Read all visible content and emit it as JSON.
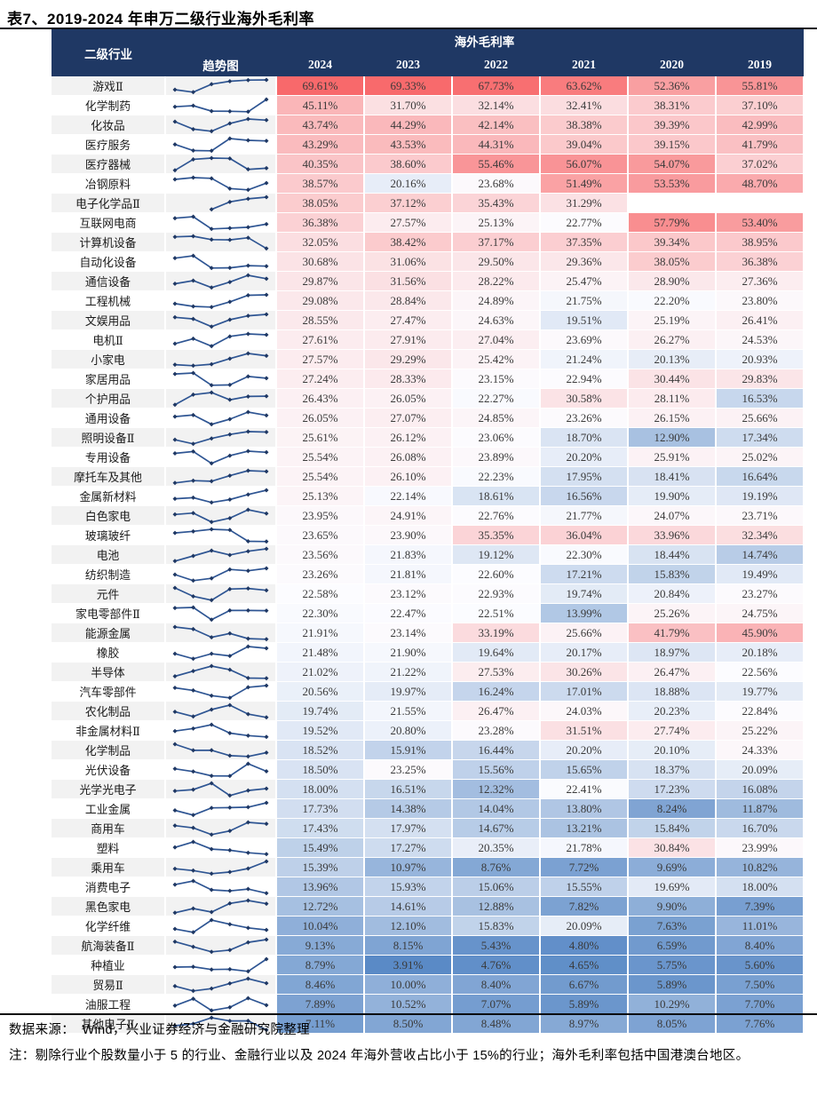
{
  "title": "表7、2019-2024 年申万二级行业海外毛利率",
  "header": {
    "industry": "二级行业",
    "trend": "趋势图",
    "group": "海外毛利率"
  },
  "chart_data": {
    "type": "table",
    "title": "海外毛利率",
    "years": [
      "2024",
      "2023",
      "2022",
      "2021",
      "2020",
      "2019"
    ],
    "unit": "%",
    "value_order": "2024→2019",
    "rows": [
      {
        "name": "游戏Ⅱ",
        "values": [
          69.61,
          69.33,
          67.73,
          63.62,
          52.36,
          55.81
        ]
      },
      {
        "name": "化学制药",
        "values": [
          45.11,
          31.7,
          32.14,
          32.41,
          38.31,
          37.1
        ]
      },
      {
        "name": "化妆品",
        "values": [
          43.74,
          44.29,
          42.14,
          38.38,
          39.39,
          42.99
        ]
      },
      {
        "name": "医疗服务",
        "values": [
          43.29,
          43.53,
          44.31,
          39.04,
          39.15,
          41.79
        ]
      },
      {
        "name": "医疗器械",
        "values": [
          40.35,
          38.6,
          55.46,
          56.07,
          54.07,
          37.02
        ]
      },
      {
        "name": "冶钢原料",
        "values": [
          38.57,
          20.16,
          23.68,
          51.49,
          53.53,
          48.7
        ]
      },
      {
        "name": "电子化学品Ⅱ",
        "values": [
          38.05,
          37.12,
          35.43,
          31.29,
          null,
          null
        ]
      },
      {
        "name": "互联网电商",
        "values": [
          36.38,
          27.57,
          25.13,
          22.77,
          57.79,
          53.4
        ]
      },
      {
        "name": "计算机设备",
        "values": [
          32.05,
          38.42,
          37.17,
          37.35,
          39.34,
          38.95
        ]
      },
      {
        "name": "自动化设备",
        "values": [
          30.68,
          31.06,
          29.5,
          29.36,
          38.05,
          36.38
        ]
      },
      {
        "name": "通信设备",
        "values": [
          29.87,
          31.56,
          28.22,
          25.47,
          28.9,
          27.36
        ]
      },
      {
        "name": "工程机械",
        "values": [
          29.08,
          28.84,
          24.89,
          21.75,
          22.2,
          23.8
        ]
      },
      {
        "name": "文娱用品",
        "values": [
          28.55,
          27.47,
          24.63,
          19.51,
          25.19,
          26.41
        ]
      },
      {
        "name": "电机Ⅱ",
        "values": [
          27.61,
          27.91,
          27.04,
          23.69,
          26.27,
          24.53
        ]
      },
      {
        "name": "小家电",
        "values": [
          27.57,
          29.29,
          25.42,
          21.24,
          20.13,
          20.93
        ]
      },
      {
        "name": "家居用品",
        "values": [
          27.24,
          28.33,
          23.15,
          22.94,
          30.44,
          29.83
        ]
      },
      {
        "name": "个护用品",
        "values": [
          26.43,
          26.05,
          22.27,
          30.58,
          28.11,
          16.53
        ]
      },
      {
        "name": "通用设备",
        "values": [
          26.05,
          27.07,
          24.85,
          23.26,
          26.15,
          25.66
        ]
      },
      {
        "name": "照明设备Ⅱ",
        "values": [
          25.61,
          26.12,
          23.06,
          18.7,
          12.9,
          17.34
        ]
      },
      {
        "name": "专用设备",
        "values": [
          25.54,
          26.08,
          23.89,
          20.2,
          25.91,
          25.02
        ]
      },
      {
        "name": "摩托车及其他",
        "values": [
          25.54,
          26.1,
          22.23,
          17.95,
          18.41,
          16.64
        ]
      },
      {
        "name": "金属新材料",
        "values": [
          25.13,
          22.14,
          18.61,
          16.56,
          19.9,
          19.19
        ]
      },
      {
        "name": "白色家电",
        "values": [
          23.95,
          24.91,
          22.76,
          21.77,
          24.07,
          23.71
        ]
      },
      {
        "name": "玻璃玻纤",
        "values": [
          23.65,
          23.9,
          35.35,
          36.04,
          33.96,
          32.34
        ]
      },
      {
        "name": "电池",
        "values": [
          23.56,
          21.83,
          19.12,
          22.3,
          18.44,
          14.74
        ]
      },
      {
        "name": "纺织制造",
        "values": [
          23.26,
          21.81,
          22.6,
          17.21,
          15.83,
          19.49
        ]
      },
      {
        "name": "元件",
        "values": [
          22.58,
          23.12,
          22.93,
          19.74,
          20.84,
          23.27
        ]
      },
      {
        "name": "家电零部件Ⅱ",
        "values": [
          22.3,
          22.47,
          22.51,
          13.99,
          25.26,
          24.75
        ]
      },
      {
        "name": "能源金属",
        "values": [
          21.91,
          23.14,
          33.19,
          25.66,
          41.79,
          45.9
        ]
      },
      {
        "name": "橡胶",
        "values": [
          21.48,
          21.9,
          19.64,
          20.17,
          18.97,
          20.18
        ]
      },
      {
        "name": "半导体",
        "values": [
          21.02,
          21.22,
          27.53,
          30.26,
          26.47,
          22.56
        ]
      },
      {
        "name": "汽车零部件",
        "values": [
          20.56,
          19.97,
          16.24,
          17.01,
          18.88,
          19.77
        ]
      },
      {
        "name": "农化制品",
        "values": [
          19.74,
          21.55,
          26.47,
          24.03,
          20.23,
          22.84
        ]
      },
      {
        "name": "非金属材料Ⅱ",
        "values": [
          19.52,
          20.8,
          23.28,
          31.51,
          27.74,
          25.22
        ]
      },
      {
        "name": "化学制品",
        "values": [
          18.52,
          15.91,
          16.44,
          20.2,
          20.1,
          24.33
        ]
      },
      {
        "name": "光伏设备",
        "values": [
          18.5,
          23.25,
          15.56,
          15.65,
          18.37,
          20.09
        ]
      },
      {
        "name": "光学光电子",
        "values": [
          18.0,
          16.51,
          12.32,
          22.41,
          17.23,
          16.08
        ]
      },
      {
        "name": "工业金属",
        "values": [
          17.73,
          14.38,
          14.04,
          13.8,
          8.24,
          11.87
        ]
      },
      {
        "name": "商用车",
        "values": [
          17.43,
          17.97,
          14.67,
          13.21,
          15.84,
          16.7
        ]
      },
      {
        "name": "塑料",
        "values": [
          15.49,
          17.27,
          20.35,
          21.78,
          30.84,
          23.99
        ]
      },
      {
        "name": "乘用车",
        "values": [
          15.39,
          10.97,
          8.76,
          7.72,
          9.69,
          10.82
        ]
      },
      {
        "name": "消费电子",
        "values": [
          13.96,
          15.93,
          15.06,
          15.55,
          19.69,
          18.0
        ]
      },
      {
        "name": "黑色家电",
        "values": [
          12.72,
          14.61,
          12.88,
          7.82,
          9.9,
          7.39
        ]
      },
      {
        "name": "化学纤维",
        "values": [
          10.04,
          12.1,
          15.83,
          20.09,
          7.63,
          11.01
        ]
      },
      {
        "name": "航海装备Ⅱ",
        "values": [
          9.13,
          8.15,
          5.43,
          4.8,
          6.59,
          8.4
        ]
      },
      {
        "name": "种植业",
        "values": [
          8.79,
          3.91,
          4.76,
          4.65,
          5.75,
          5.6
        ]
      },
      {
        "name": "贸易Ⅱ",
        "values": [
          8.46,
          10.0,
          8.4,
          6.67,
          5.89,
          7.5
        ]
      },
      {
        "name": "油服工程",
        "values": [
          7.89,
          10.52,
          7.07,
          5.89,
          10.29,
          7.7
        ]
      },
      {
        "name": "其他电子Ⅱ",
        "values": [
          7.11,
          8.5,
          8.48,
          8.97,
          8.05,
          7.76
        ]
      }
    ]
  },
  "footer": {
    "source": "数据来源：  Wind，兴业证券经济与金融研究院整理",
    "note": "注：剔除行业个股数量小于 5 的行业、金融行业以及 2024 年海外营收占比小于 15%的行业；海外毛利率包括中国港澳台地区。"
  },
  "colors": {
    "header_bg": "#1F3864",
    "scale_min": "#5A8AC6",
    "scale_mid": "#FCFCFF",
    "scale_max": "#F8696B",
    "spark_line": "#2E5593",
    "spark_marker": "#1F3864",
    "row_band": "#F2F2F2",
    "row_plain": "#FFFFFF"
  }
}
